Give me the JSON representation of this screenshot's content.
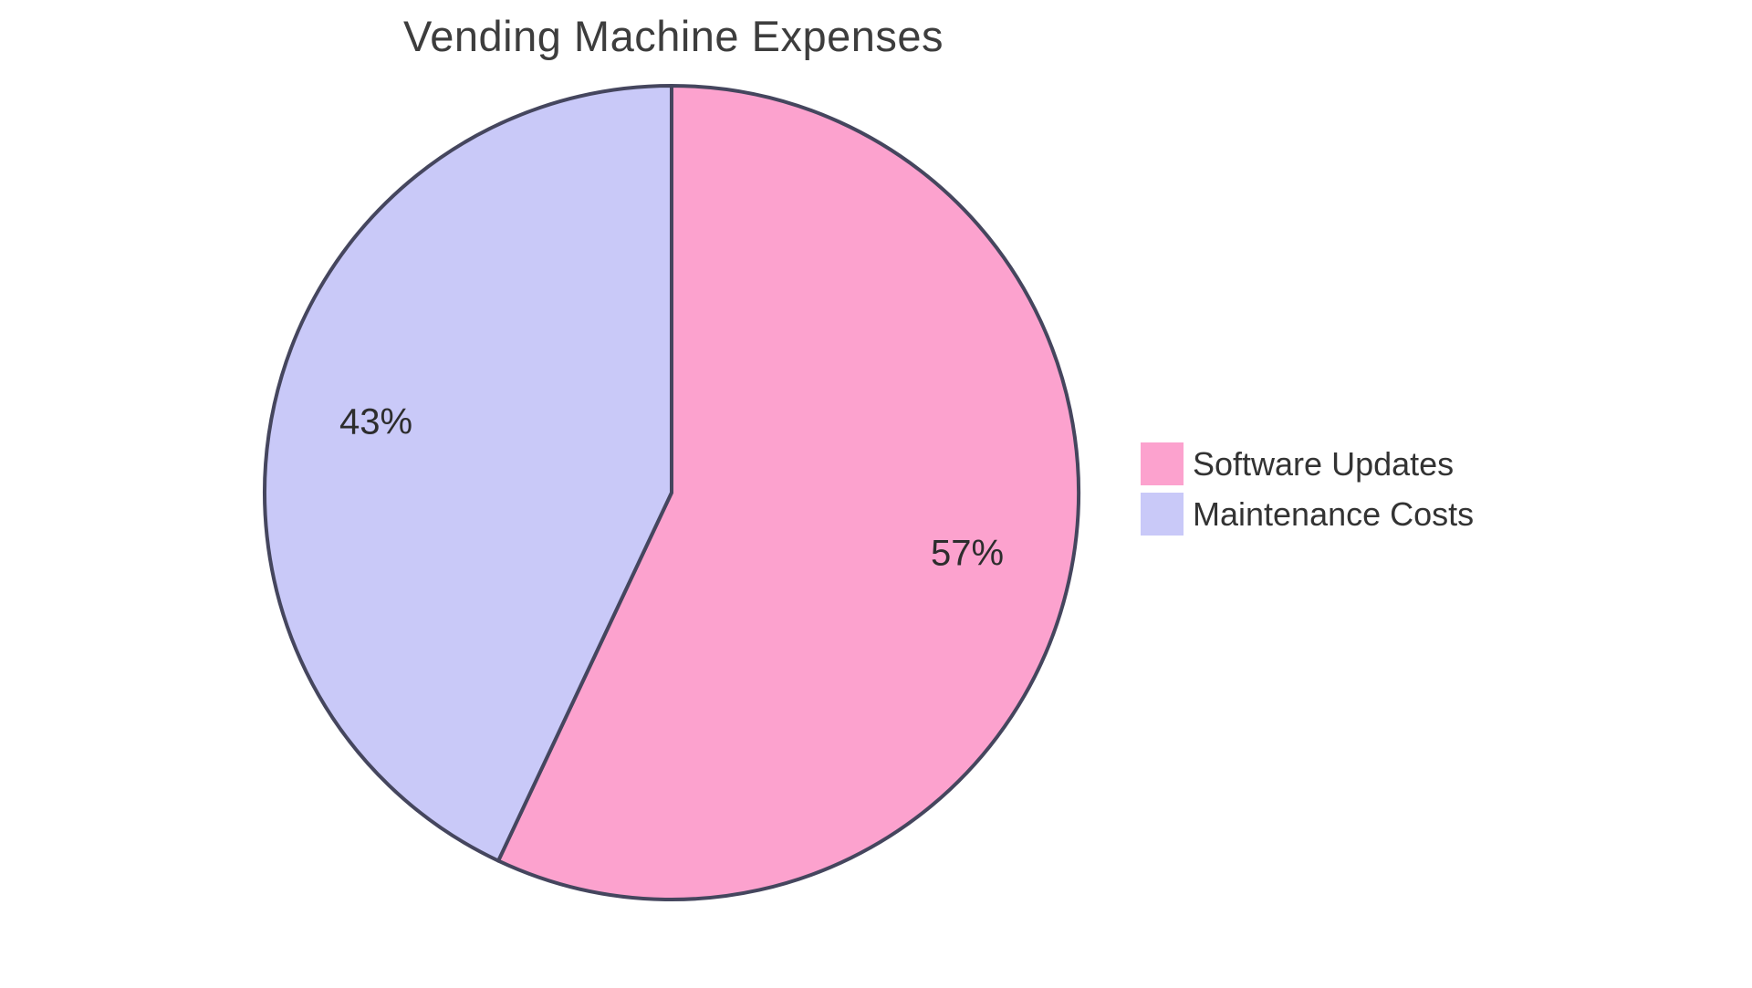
{
  "title": "Vending Machine Expenses",
  "chart_data": {
    "type": "pie",
    "title": "Vending Machine Expenses",
    "categories": [
      "Software Updates",
      "Maintenance Costs"
    ],
    "values": [
      57,
      43
    ],
    "labels": [
      "57%",
      "43%"
    ],
    "colors": [
      "#FCA2CE",
      "#C9C9F8"
    ],
    "stroke_color": "#45465E",
    "stroke_width": 4,
    "start_angle_deg": 0,
    "direction": "clockwise",
    "legend_position": "right",
    "label_color": "#2D2D2D",
    "title_color": "#3D3D3D"
  },
  "legend": {
    "items": [
      {
        "label": "Software Updates",
        "color": "#FCA2CE"
      },
      {
        "label": "Maintenance Costs",
        "color": "#C9C9F8"
      }
    ]
  }
}
